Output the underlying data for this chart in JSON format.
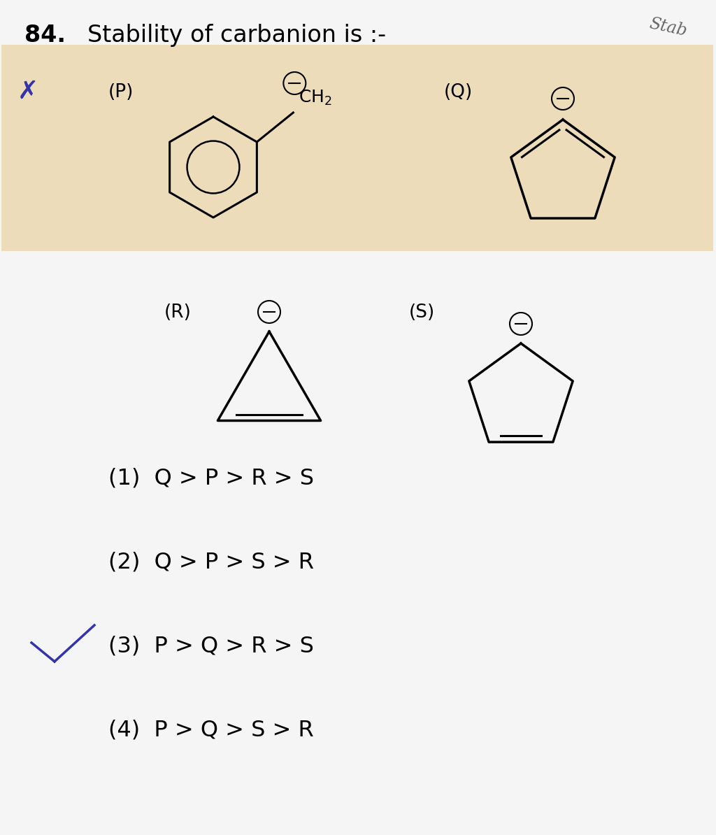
{
  "title_number": "84.",
  "title_text": "Stability of carbanion is :-",
  "stab_text": "Stab",
  "bg_color": "#f5f5f5",
  "text_color": "#000000",
  "option1": "(1)  Q > P > R > S",
  "option2": "(2)  Q > P > S > R",
  "option3": "(3)  P > Q > R > S",
  "option4": "(4)  P > Q > S > R",
  "highlight_color": "#e8c98a",
  "label_P": "(P)",
  "label_Q": "(Q)",
  "label_R": "(R)",
  "label_S": "(S)",
  "checkmark_color": "#3333aa",
  "x_mark_color": "#3333aa",
  "stab_color": "#666666"
}
